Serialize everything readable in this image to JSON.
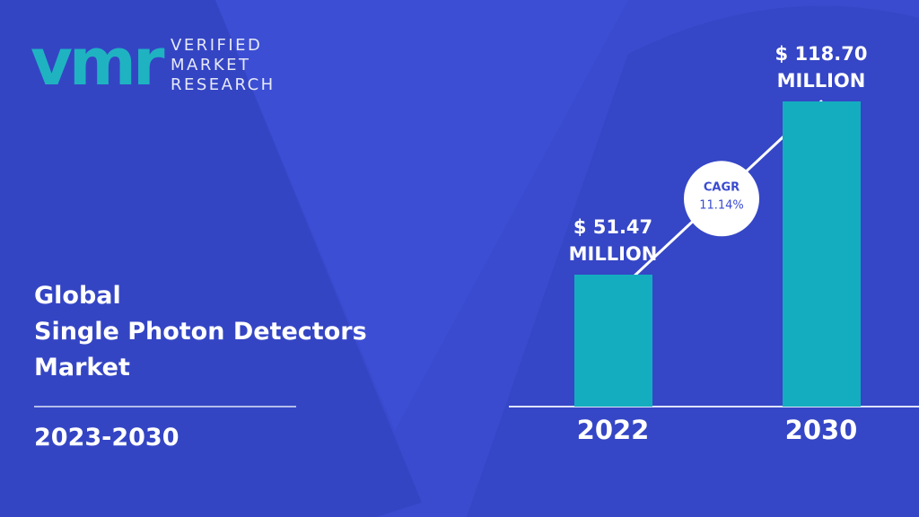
{
  "logo": {
    "mark": "vmr",
    "lines": [
      "VERIFIED",
      "MARKET",
      "RESEARCH"
    ]
  },
  "title_lines": [
    "Global",
    "Single Photon Detectors",
    "Market"
  ],
  "period": "2023-2030",
  "chart_data": {
    "type": "bar",
    "categories": [
      "2022",
      "2030"
    ],
    "values": [
      51.47,
      118.7
    ],
    "value_labels": [
      "$ 51.47 MILLION",
      "$ 118.70 MILLION"
    ],
    "color": "#14adc0",
    "annotation": {
      "label": "CAGR",
      "value": "11.14%"
    }
  }
}
